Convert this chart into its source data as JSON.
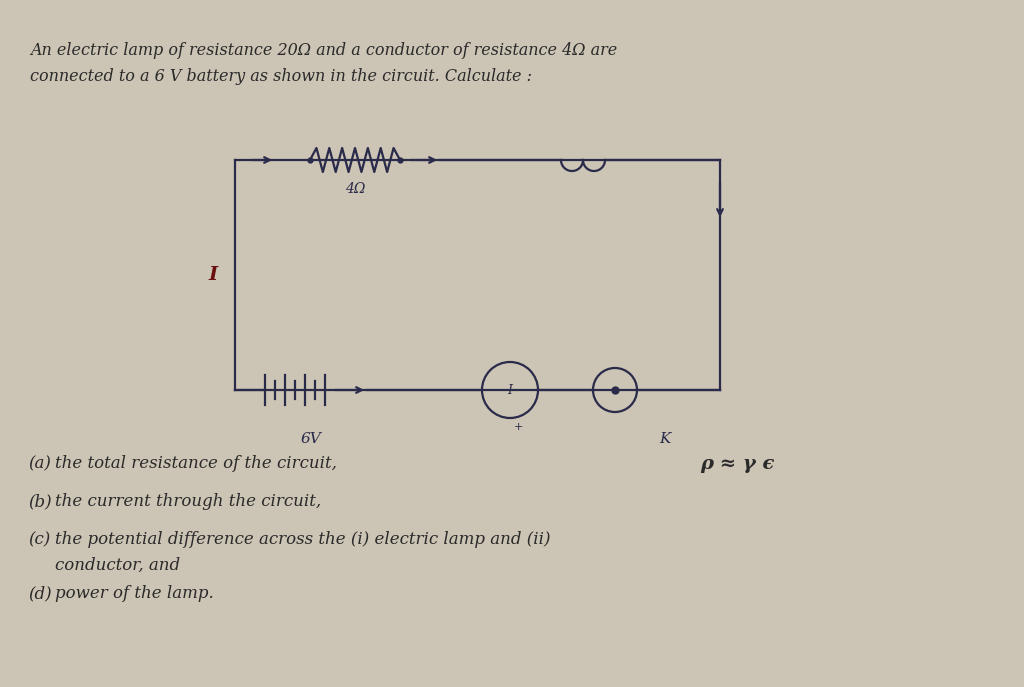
{
  "bg_color": "#c8c0b0",
  "paper_color": "#d4ccc0",
  "circuit_color": "#2a2a4a",
  "text_color": "#2a2a2a",
  "title_line1": "An electric lamp of resistance 20Ω and a conductor of resistance 4Ω are",
  "title_line2": "connected to a 6 V battery as shown in the circuit. Calculate :",
  "resistor_label": "4Ω",
  "current_label": "I",
  "voltage_label": "6V",
  "key_label": "K",
  "annotation": "ρ ≈ γ ϵ",
  "q_a": "the total resistance of the circuit,",
  "q_b": "the current through the circuit,",
  "q_c": "the potential difference across the (i) electric lamp and (ii)",
  "q_c2": "conductor, and",
  "q_d": "power of the lamp.",
  "prefix_a": "(a)",
  "prefix_b": "(b)",
  "prefix_c": "(c)",
  "prefix_d": "(d)"
}
